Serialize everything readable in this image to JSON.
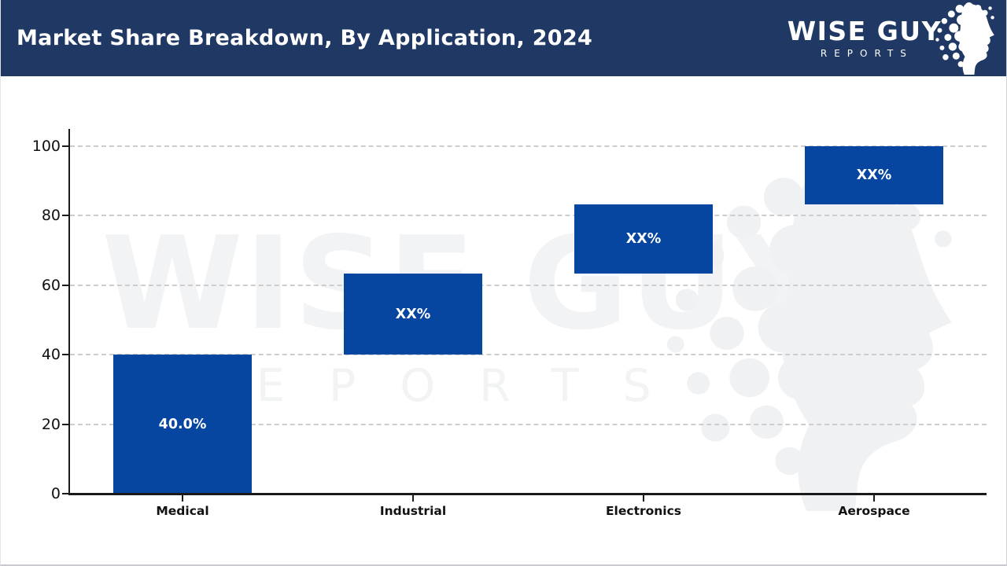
{
  "header": {
    "title": "Market Share Breakdown, By Application, 2024",
    "logo": {
      "line1": "WISE GUY",
      "line2": "REPORTS"
    }
  },
  "watermark": {
    "line1": "WISE GUY",
    "line2": "REPORTS"
  },
  "chart_data": {
    "type": "bar",
    "subtype": "waterfall",
    "title": "Market Share Breakdown, By Application, 2024",
    "categories": [
      "Medical",
      "Industrial",
      "Electronics",
      "Aerospace"
    ],
    "segments": [
      {
        "category": "Medical",
        "start": 0,
        "end": 40,
        "label": "40.0%"
      },
      {
        "category": "Industrial",
        "start": 40,
        "end": 63.3,
        "label": "XX%"
      },
      {
        "category": "Electronics",
        "start": 63.3,
        "end": 83.3,
        "label": "XX%"
      },
      {
        "category": "Aerospace",
        "start": 83.3,
        "end": 100,
        "label": "XX%"
      }
    ],
    "yticks": [
      0,
      20,
      40,
      60,
      80,
      100
    ],
    "ylim": [
      0,
      105
    ],
    "xlabel": "",
    "ylabel": "",
    "grid": "horizontal-dashed",
    "legend": null,
    "bar_color": "#0645a0",
    "bar_label_color": "#ffffff",
    "colors": {
      "header_bg": "#1f3864",
      "axis": "#1a1a1a",
      "gridline": "#cdcdcd",
      "watermark": "#f1f2f4"
    }
  }
}
